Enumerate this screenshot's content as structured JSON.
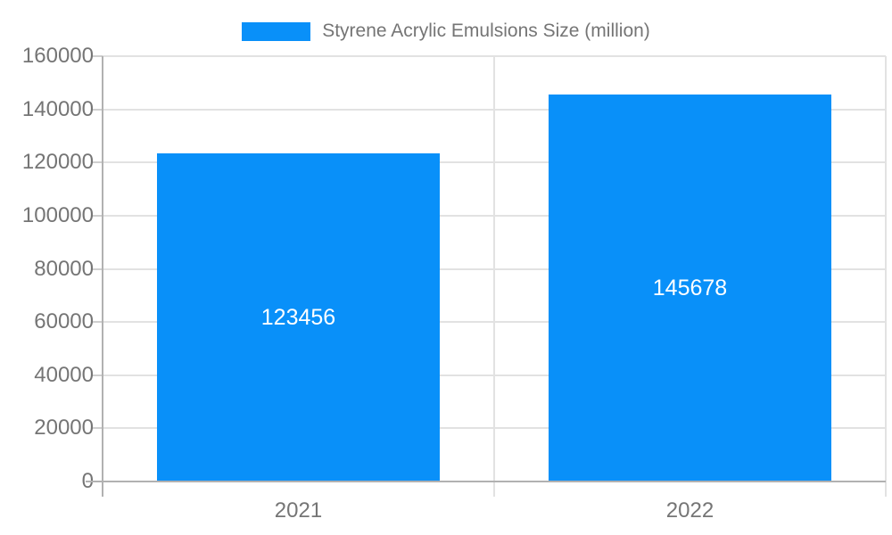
{
  "legend": {
    "label": "Styrene Acrylic Emulsions Size (million)"
  },
  "chart_data": {
    "type": "bar",
    "title": "Styrene Acrylic Emulsions Size (million)",
    "categories": [
      "2021",
      "2022"
    ],
    "series": [
      {
        "name": "Styrene Acrylic Emulsions Size (million)",
        "values": [
          123456,
          145678
        ]
      }
    ],
    "values": [
      123456,
      145678
    ],
    "value_labels": [
      "123456",
      "145678"
    ],
    "xlabel": "",
    "ylabel": "",
    "ylim": [
      0,
      160000
    ],
    "ytick_step": 20000,
    "ytick_labels": [
      "0",
      "20000",
      "40000",
      "60000",
      "80000",
      "100000",
      "120000",
      "140000",
      "160000"
    ],
    "grid": true,
    "legend_position": "top-center"
  },
  "colors": {
    "bar": "#0990f9",
    "grid": "#e2e2e2",
    "axis": "#b1b1b1",
    "tick": "#cfcfcf",
    "text": "#757575",
    "value_label": "#ffffff",
    "background": "#ffffff"
  }
}
